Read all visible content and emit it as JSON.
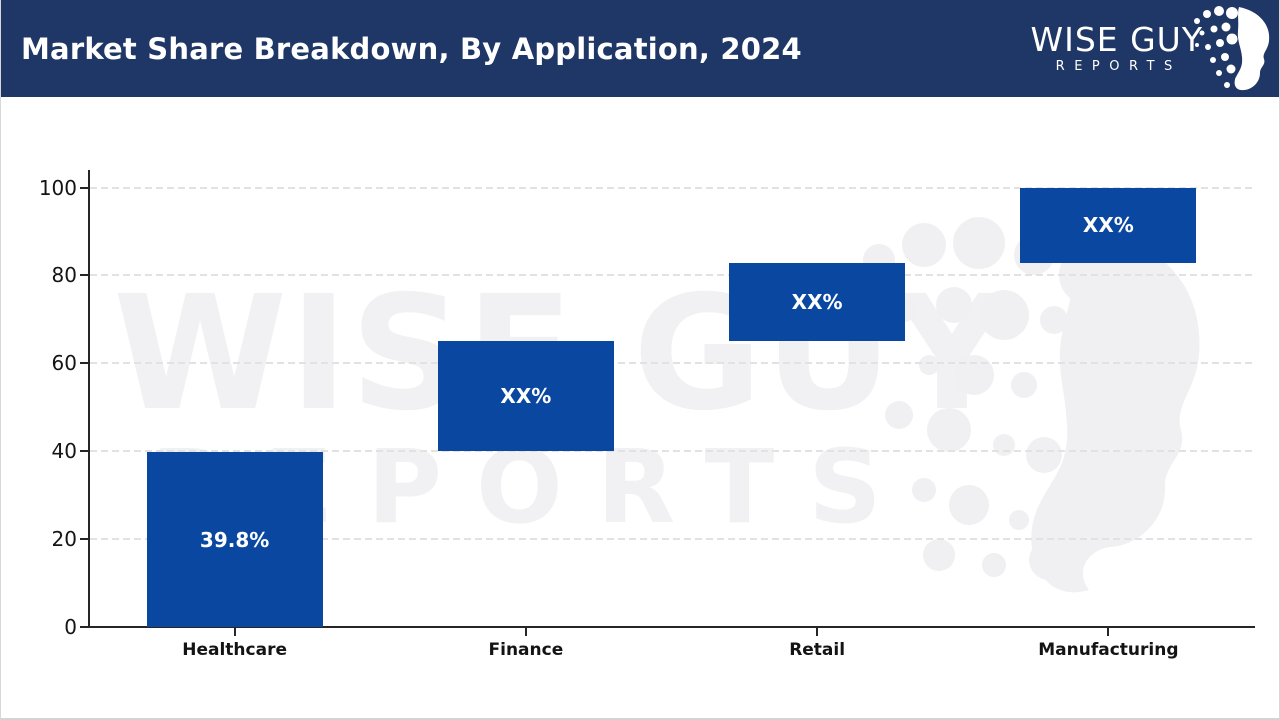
{
  "header": {
    "title": "Market Share Breakdown, By Application, 2024",
    "logo_line1": "WISE GUY",
    "logo_line2": "REPORTS",
    "bg_color": "#1f3766"
  },
  "watermark": {
    "line1": "WISE GUY",
    "line2": "REPORTS"
  },
  "chart_data": {
    "type": "bar",
    "subtype": "waterfall",
    "title": "Market Share Breakdown, By Application, 2024",
    "categories": [
      "Healthcare",
      "Finance",
      "Retail",
      "Manufacturing"
    ],
    "segments": [
      {
        "category": "Healthcare",
        "start": 0,
        "end": 39.8,
        "label": "39.8%"
      },
      {
        "category": "Finance",
        "start": 40,
        "end": 65,
        "label": "XX%"
      },
      {
        "category": "Retail",
        "start": 65,
        "end": 82.8,
        "label": "XX%"
      },
      {
        "category": "Manufacturing",
        "start": 82.8,
        "end": 100,
        "label": "XX%"
      }
    ],
    "values": [
      39.8,
      25,
      17.8,
      17.2
    ],
    "yticks": [
      0,
      20,
      40,
      60,
      80,
      100
    ],
    "ylim": [
      0,
      105
    ],
    "grid": "horizontal-dashed",
    "legend": "none",
    "xlabel": "",
    "ylabel": "",
    "bar_color": "#0a47a1",
    "bar_label_color": "#ffffff",
    "axis_color": "#262626",
    "gridline_color": "#e2e2e2",
    "watermark_color": "#f1f1f3"
  }
}
